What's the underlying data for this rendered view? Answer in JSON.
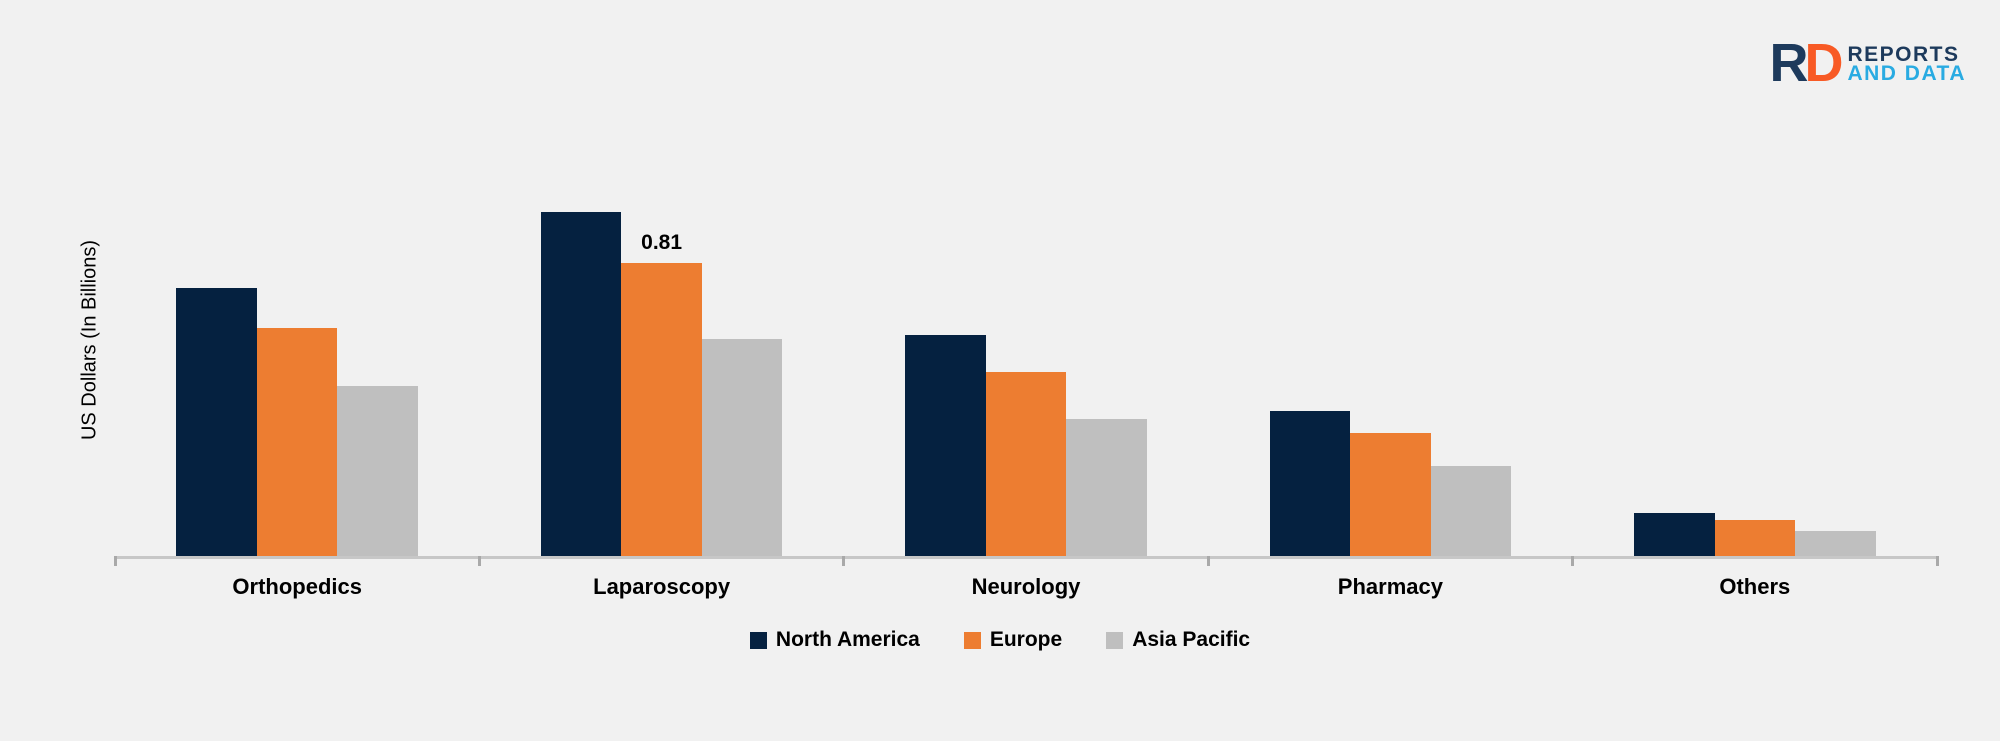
{
  "logo": {
    "initial_r": "R",
    "initial_d": "D",
    "line1": "REPORTS",
    "line2": "AND DATA",
    "navy": "#1d3a5c",
    "orange": "#f85a25",
    "blue": "#29abe2"
  },
  "chart_data": {
    "type": "bar",
    "title": "",
    "ylabel": "US Dollars (In Billions)",
    "xlabel": "",
    "categories": [
      "Orthopedics",
      "Laparoscopy",
      "Neurology",
      "Pharmacy",
      "Others"
    ],
    "series": [
      {
        "name": "North America",
        "color": "#052140",
        "values": [
          0.74,
          0.95,
          0.61,
          0.4,
          0.12
        ]
      },
      {
        "name": "Europe",
        "color": "#ed7d31",
        "values": [
          0.63,
          0.81,
          0.51,
          0.34,
          0.1
        ]
      },
      {
        "name": "Asia Pacific",
        "color": "#bfbfbf",
        "values": [
          0.47,
          0.6,
          0.38,
          0.25,
          0.07
        ]
      }
    ],
    "data_labels": [
      {
        "series_index": 1,
        "category_index": 1,
        "text": "0.81"
      }
    ],
    "ylim": [
      0,
      1.0
    ],
    "grid": false,
    "legend_position": "bottom",
    "axis_color": "#c7c7c7",
    "background": "#f1f1f1"
  }
}
